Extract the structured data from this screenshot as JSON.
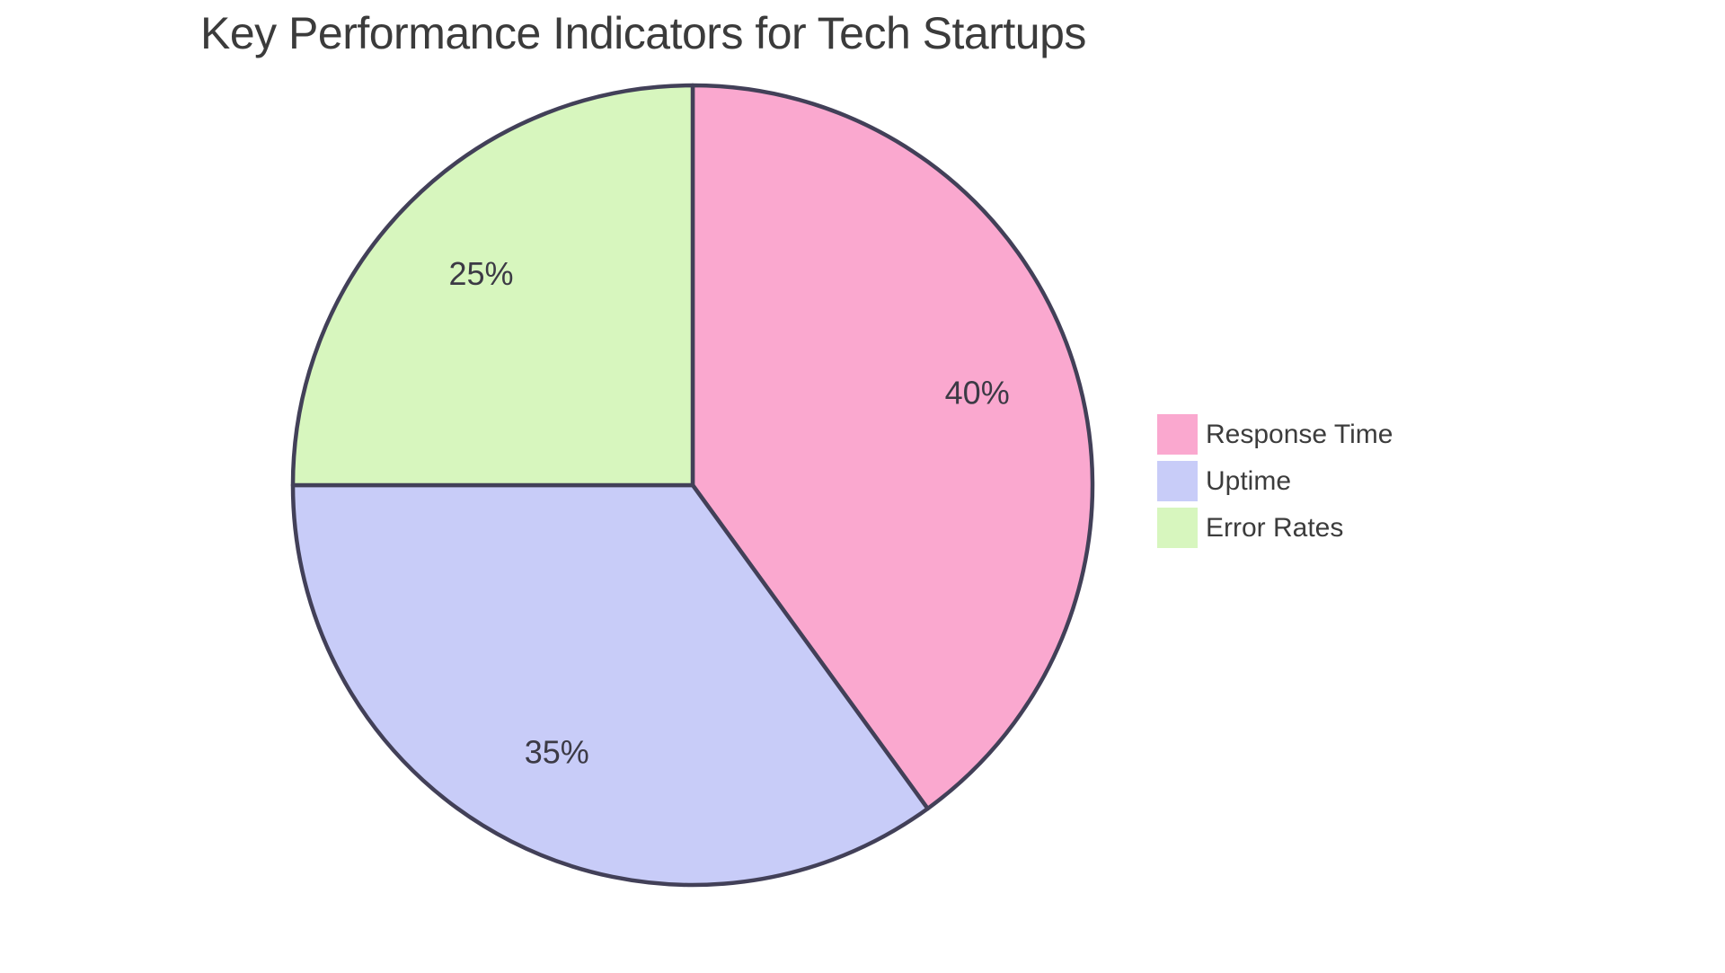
{
  "chart_data": {
    "type": "pie",
    "title": "Key Performance Indicators for Tech Startups",
    "categories": [
      "Response Time",
      "Uptime",
      "Error Rates"
    ],
    "values": [
      40,
      35,
      25
    ],
    "value_unit": "%",
    "labels_format": "percent",
    "legend_position": "right",
    "start_angle": "top",
    "direction": "clockwise",
    "stroke_color": "#424058",
    "label_color": "#3c3a45",
    "title_color": "#3b3b3b",
    "legend_text_color": "#3c3c3c",
    "slices": [
      {
        "id": "response-time",
        "label": "Response Time",
        "value": 40,
        "pct_label": "40%",
        "color": "#FAA8CF"
      },
      {
        "id": "uptime",
        "label": "Uptime",
        "value": 35,
        "pct_label": "35%",
        "color": "#C8CCF8"
      },
      {
        "id": "error-rates",
        "label": "Error Rates",
        "value": 25,
        "pct_label": "25%",
        "color": "#D7F6BE"
      }
    ]
  }
}
